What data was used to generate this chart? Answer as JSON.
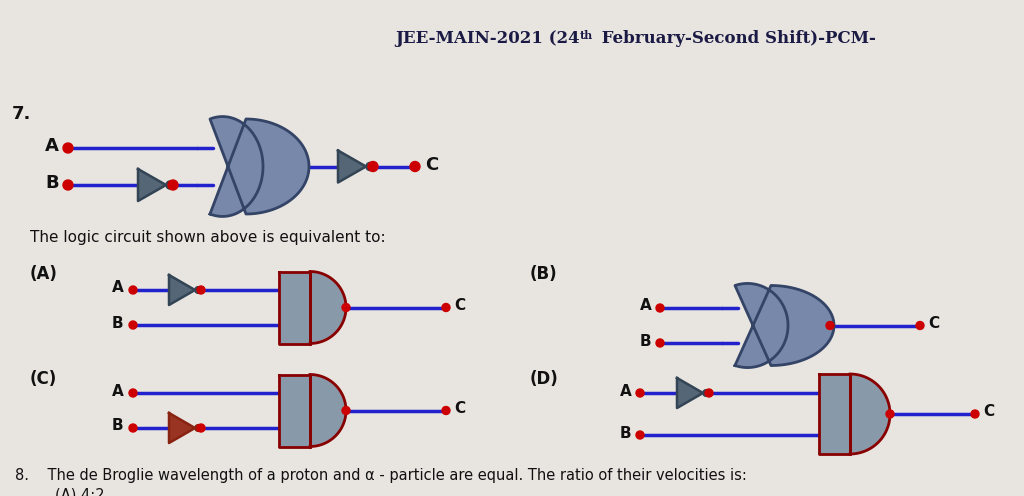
{
  "title_line1": "JEE-MAIN-2021 (24",
  "title_sup": "th",
  "title_line2": " February-Second Shift)-PCM-",
  "title_fontsize": 12,
  "bg_color": "#e8e4e0",
  "gate_fill": "#8899aa",
  "gate_edge_dark": "#880000",
  "gate_edge_gray": "#444455",
  "line_color": "#2222cc",
  "dot_color": "#cc0000",
  "text_color": "#111111",
  "not_fill_gray": "#556677",
  "not_fill_dark": "#884433",
  "not_fill_red": "#993322"
}
